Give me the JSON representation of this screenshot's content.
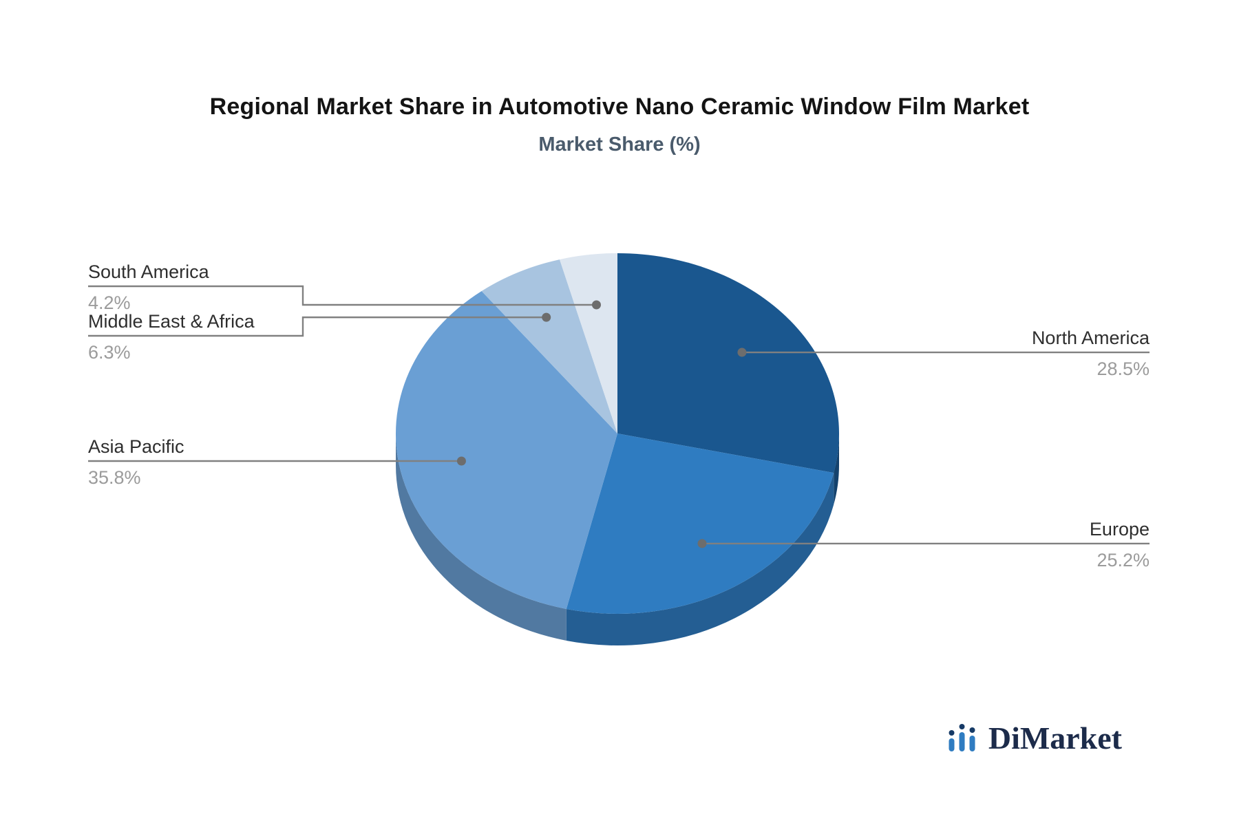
{
  "header": {
    "title": "Regional Market Share in Automotive Nano Ceramic Window Film Market",
    "subtitle": "Market Share (%)"
  },
  "chart_data": {
    "type": "pie",
    "title": "Regional Market Share in Automotive Nano Ceramic Window Film Market",
    "subtitle": "Market Share (%)",
    "unit": "%",
    "start_angle_deg": 0,
    "direction": "clockwise",
    "style": "3d",
    "slices": [
      {
        "label": "North America",
        "value": 28.5,
        "pct_label": "28.5%",
        "color": "#1a578f"
      },
      {
        "label": "Europe",
        "value": 25.2,
        "pct_label": "25.2%",
        "color": "#2f7cc1"
      },
      {
        "label": "Asia Pacific",
        "value": 35.8,
        "pct_label": "35.8%",
        "color": "#6a9fd4"
      },
      {
        "label": "Middle East & Africa",
        "value": 6.3,
        "pct_label": "6.3%",
        "color": "#a8c4e0"
      },
      {
        "label": "South America",
        "value": 4.2,
        "pct_label": "4.2%",
        "color": "#dde6f0"
      }
    ],
    "legend": "none",
    "leader_line_color": "#808080",
    "label_color": "#2e2e2e",
    "percent_color": "#9b9b9b"
  },
  "logo": {
    "text": "DiMarket",
    "icon": "bar-chart-icon",
    "text_color": "#1c2b4a",
    "accent": "#2f7cc1"
  }
}
